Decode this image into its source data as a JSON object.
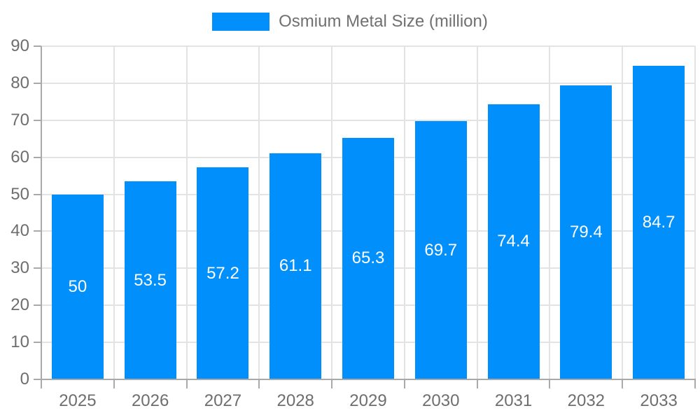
{
  "legend": {
    "label": "Osmium Metal Size (million)"
  },
  "colors": {
    "bar": "#008FFB",
    "grid": "#e3e3e3",
    "axis": "#a9a9a9",
    "tick": "#a9a9a9",
    "axis_text": "#6e6e6e",
    "legend_text": "#707070",
    "value_text": "#ffffff",
    "background": "#ffffff"
  },
  "chart_data": {
    "type": "bar",
    "title": "Osmium Metal Size (million)",
    "categories": [
      "2025",
      "2026",
      "2027",
      "2028",
      "2029",
      "2030",
      "2031",
      "2032",
      "2033"
    ],
    "series": [
      {
        "name": "Osmium Metal Size (million)",
        "values": [
          50,
          53.5,
          57.2,
          61.1,
          65.3,
          69.7,
          74.4,
          79.4,
          84.7
        ]
      }
    ],
    "value_labels": [
      "50",
      "53.5",
      "57.2",
      "61.1",
      "65.3",
      "69.7",
      "74.4",
      "79.4",
      "84.7"
    ],
    "xlabel": "",
    "ylabel": "",
    "ylim": [
      0,
      90
    ],
    "yticks": [
      0,
      10,
      20,
      30,
      40,
      50,
      60,
      70,
      80,
      90
    ],
    "grid": true,
    "legend_position": "top"
  }
}
